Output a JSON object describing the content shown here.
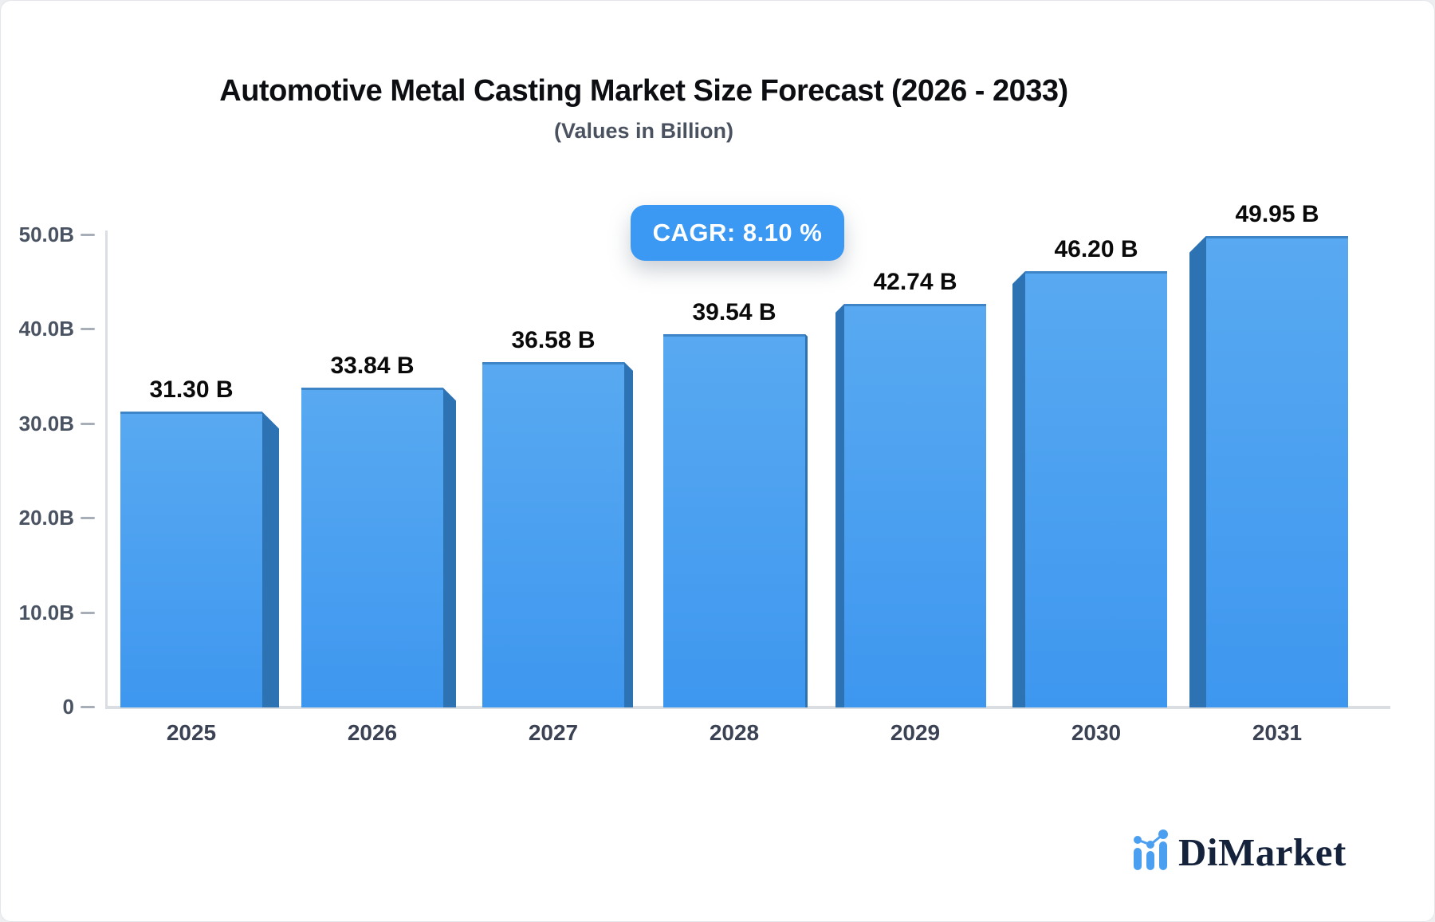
{
  "header": {
    "title": "Automotive Metal Casting Market Size Forecast (2026 - 2033)",
    "subtitle": "(Values in Billion)",
    "badge": "CAGR: 8.10 %"
  },
  "chart_data": {
    "type": "bar",
    "title": "Automotive Metal Casting Market Size Forecast (2026 - 2033)",
    "subtitle": "(Values in Billion)",
    "annotations": [
      {
        "name": "cagr-badge",
        "text": "CAGR: 8.10 %"
      }
    ],
    "categories": [
      "2025",
      "2026",
      "2027",
      "2028",
      "2029",
      "2030",
      "2031"
    ],
    "values": [
      31.3,
      33.84,
      36.58,
      39.54,
      42.74,
      46.2,
      49.95
    ],
    "value_labels": [
      "31.30 B",
      "33.84 B",
      "36.58 B",
      "39.54 B",
      "42.74 B",
      "46.20 B",
      "49.95 B"
    ],
    "xlabel": "",
    "ylabel": "",
    "ylim": [
      0,
      50
    ],
    "yticks": [
      {
        "value": 0,
        "label": "0"
      },
      {
        "value": 10,
        "label": "10.0B"
      },
      {
        "value": 20,
        "label": "20.0B"
      },
      {
        "value": 30,
        "label": "30.0B"
      },
      {
        "value": 40,
        "label": "40.0B"
      },
      {
        "value": 50,
        "label": "50.0B"
      }
    ],
    "grid": false,
    "legend": false,
    "bar_style": "3d-extruded"
  },
  "colors": {
    "bar_face_top": "#58a9f1",
    "bar_face_bottom": "#3e97ef",
    "bar_top_edge": "#3d85c6",
    "bar_side": "#2d72b3",
    "badge_bg": "#3b99f4",
    "badge_text": "#ffffff",
    "axis_line": "#dadde2",
    "tick_mark": "#a8aeb8",
    "tick_text": "#4a5362",
    "x_label_text": "#3b4254",
    "value_label_text": "#0a0a0a",
    "logo_text": "#15223c",
    "logo_icon": "#4b9ff0"
  },
  "logo": {
    "text": "DiMarket"
  }
}
